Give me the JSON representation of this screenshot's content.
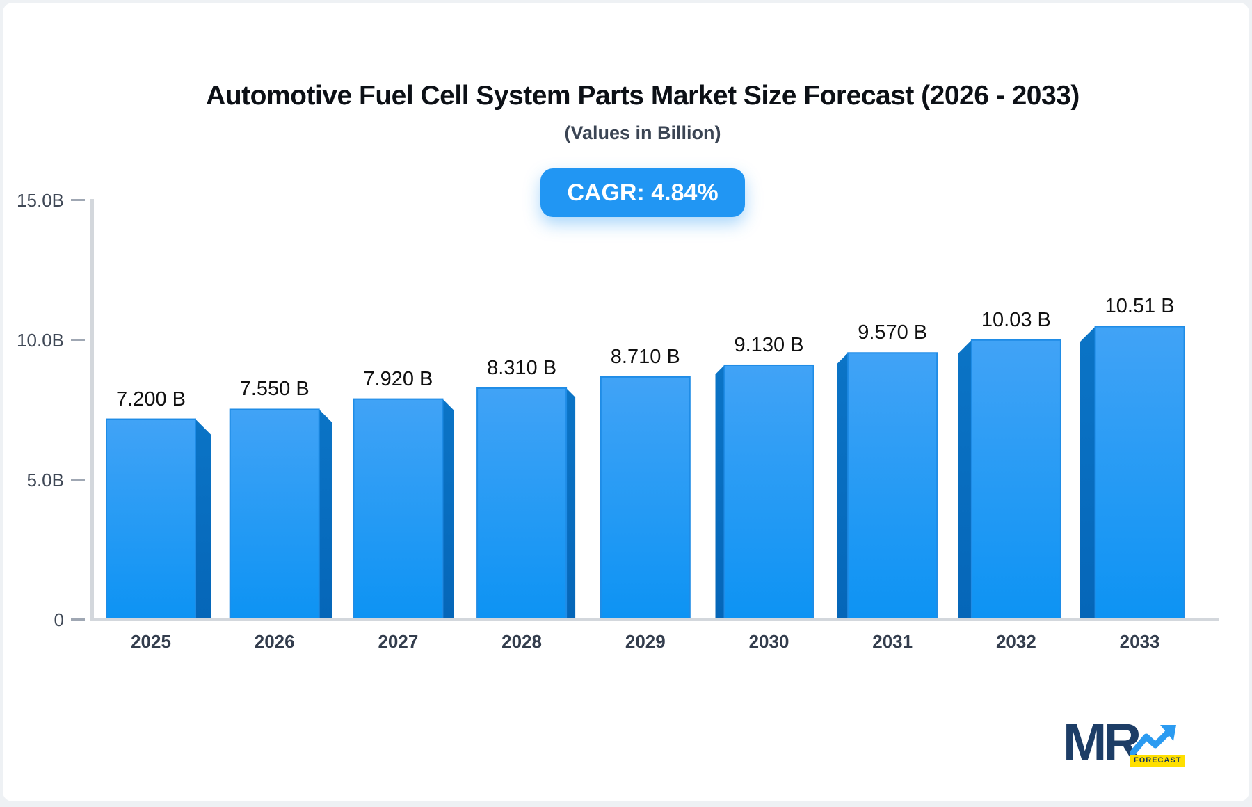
{
  "page": {
    "background": "#eef1f4",
    "card_background": "#ffffff"
  },
  "chart_data": {
    "type": "bar",
    "title": "Automotive Fuel Cell System Parts Market Size Forecast (2026 - 2033)",
    "subtitle": "(Values in Billion)",
    "cagr_label": "CAGR: 4.84%",
    "cagr_value_pct": 4.84,
    "categories": [
      "2025",
      "2026",
      "2027",
      "2028",
      "2029",
      "2030",
      "2031",
      "2032",
      "2033"
    ],
    "values": [
      7.2,
      7.55,
      7.92,
      8.31,
      8.71,
      9.13,
      9.57,
      10.03,
      10.51
    ],
    "value_labels": [
      "7.200 B",
      "7.550 B",
      "7.920 B",
      "8.310 B",
      "8.710 B",
      "9.130 B",
      "9.570 B",
      "10.03 B",
      "10.51 B"
    ],
    "xlabel": "",
    "ylabel": "",
    "ylim": [
      0,
      15
    ],
    "y_ticks": [
      {
        "label": "15.0B",
        "value": 15
      },
      {
        "label": "10.0B",
        "value": 10
      },
      {
        "label": "5.0B",
        "value": 5
      },
      {
        "label": "0",
        "value": 0
      }
    ],
    "grid": "off",
    "legend": "none",
    "colors": {
      "bar_front_top": "#41a3f6",
      "bar_front_bottom": "#0d93f3",
      "bar_front_stroke": "#1f8ce6",
      "bar_side_top": "#0b74c6",
      "bar_side_bottom": "#0566b8",
      "badge_bg": "#2196f3",
      "axis_line": "#d3d7dc",
      "tick_dash": "#9fa7b3"
    }
  },
  "logo": {
    "brand": "MR",
    "tag": "FORECAST"
  }
}
